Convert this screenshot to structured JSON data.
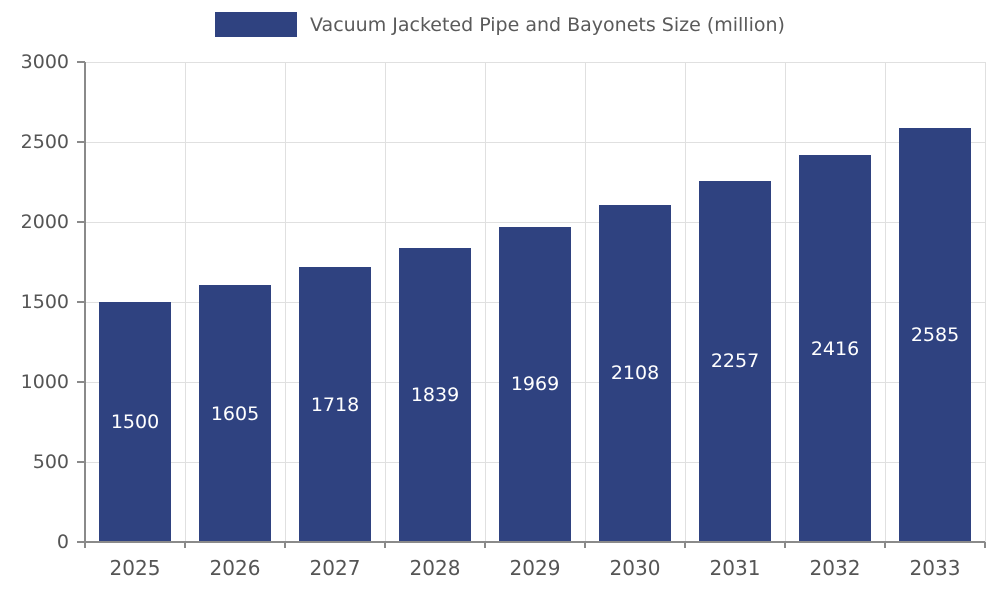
{
  "chart_data": {
    "type": "bar",
    "title": "Vacuum Jacketed Pipe and Bayonets Size (million)",
    "categories": [
      "2025",
      "2026",
      "2027",
      "2028",
      "2029",
      "2030",
      "2031",
      "2032",
      "2033"
    ],
    "values": [
      1500,
      1605,
      1718,
      1839,
      1969,
      2108,
      2257,
      2416,
      2585
    ],
    "series_name": "Vacuum Jacketed Pipe and Bayonets Size (million)",
    "xlabel": "",
    "ylabel": "",
    "ylim": [
      0,
      3000
    ],
    "yticks": [
      0,
      500,
      1000,
      1500,
      2000,
      2500,
      3000
    ],
    "grid": "on",
    "legend_position": "top",
    "colors": {
      "bar": "#2f4280",
      "value_label": "#ffffff",
      "grid": "#e0e0e0",
      "axis": "#8a8a8a",
      "tick_text": "#555555",
      "legend_text": "#5a5a5a",
      "background": "#ffffff"
    }
  }
}
